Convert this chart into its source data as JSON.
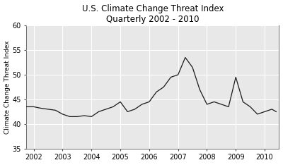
{
  "title_line1": "U.S. Climate Change Threat Index",
  "title_line2": "Quarterly 2002 - 2010",
  "ylabel": "Climate Change Threat Index",
  "xlim": [
    2001.75,
    2010.5
  ],
  "ylim": [
    35,
    60
  ],
  "yticks": [
    35,
    40,
    45,
    50,
    55,
    60
  ],
  "xticks": [
    2002,
    2003,
    2004,
    2005,
    2006,
    2007,
    2008,
    2009,
    2010
  ],
  "background_color": "#ffffff",
  "plot_bg_color": "#e8e8e8",
  "line_color": "#1a1a1a",
  "grid_color": "#ffffff",
  "x": [
    2001.75,
    2002.0,
    2002.25,
    2002.5,
    2002.75,
    2003.0,
    2003.25,
    2003.5,
    2003.75,
    2004.0,
    2004.25,
    2004.5,
    2004.75,
    2005.0,
    2005.25,
    2005.5,
    2005.75,
    2006.0,
    2006.25,
    2006.5,
    2006.75,
    2007.0,
    2007.25,
    2007.5,
    2007.75,
    2008.0,
    2008.25,
    2008.5,
    2008.75,
    2009.0,
    2009.25,
    2009.5,
    2009.75,
    2010.0,
    2010.25,
    2010.4
  ],
  "y": [
    43.5,
    43.5,
    43.2,
    43.0,
    42.8,
    42.0,
    41.5,
    41.5,
    41.7,
    41.5,
    42.5,
    43.0,
    43.5,
    44.5,
    42.5,
    43.0,
    44.0,
    44.5,
    46.5,
    47.5,
    49.5,
    50.0,
    53.5,
    51.5,
    47.0,
    44.0,
    44.5,
    44.0,
    43.5,
    49.5,
    44.5,
    43.5,
    42.0,
    42.5,
    43.0,
    42.5
  ],
  "title_fontsize": 8.5,
  "tick_fontsize": 7,
  "ylabel_fontsize": 6.5
}
